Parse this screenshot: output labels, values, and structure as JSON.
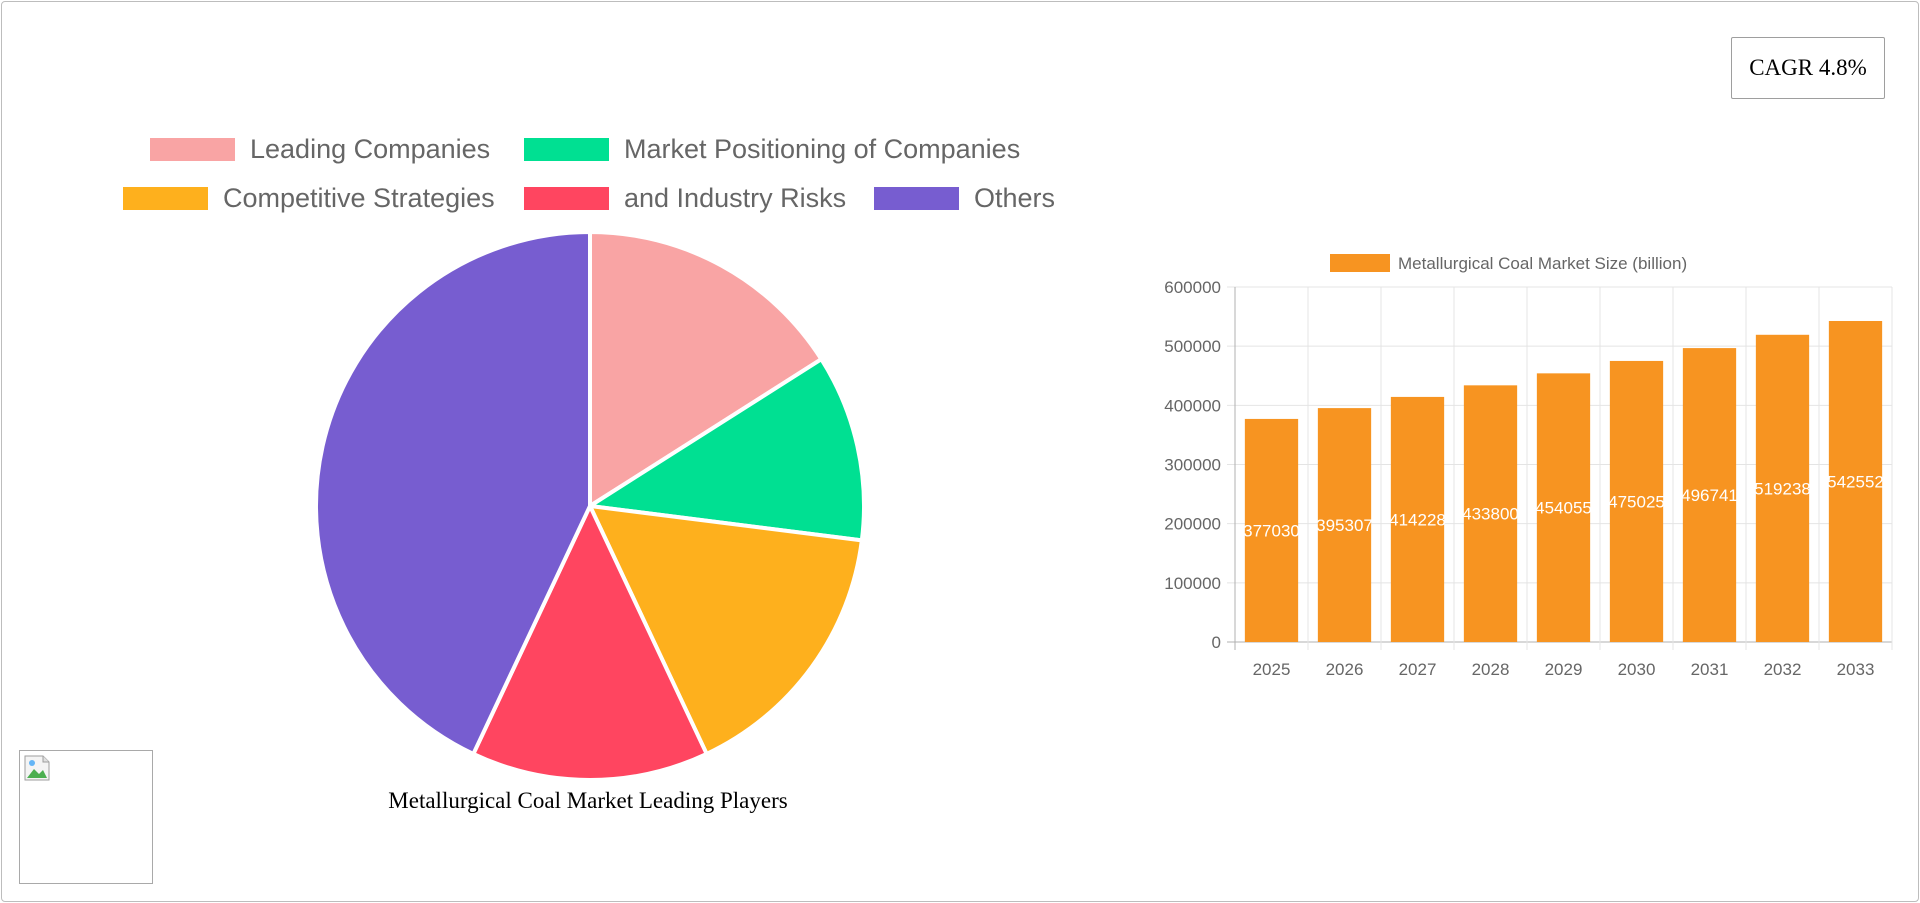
{
  "cagr_badge": "CAGR 4.8%",
  "pie_caption": "Metallurgical Coal Market Leading Players",
  "pie_legend": [
    {
      "label": "Leading Companies",
      "color": "#f9a4a4"
    },
    {
      "label": "Market Positioning of Companies",
      "color": "#00e092"
    },
    {
      "label": "Competitive Strategies",
      "color": "#feb01d"
    },
    {
      "label": "and Industry Risks",
      "color": "#ff4560"
    },
    {
      "label": "Others",
      "color": "#775dd0"
    }
  ],
  "chart_data": [
    {
      "type": "pie",
      "title": "",
      "categories": [
        "Leading Companies",
        "Market Positioning of Companies",
        "Competitive Strategies",
        "and Industry Risks",
        "Others"
      ],
      "values": [
        16,
        11,
        16,
        14,
        43
      ],
      "colors": [
        "#f9a4a4",
        "#00e092",
        "#feb01d",
        "#ff4560",
        "#775dd0"
      ],
      "legend_position": "top"
    },
    {
      "type": "bar",
      "title": "",
      "series": [
        {
          "name": "Metallurgical Coal Market Size (billion)",
          "color": "#f79421",
          "values": [
            377030,
            395307,
            414228,
            433800,
            454055,
            475025,
            496741,
            519238,
            542552
          ]
        }
      ],
      "categories": [
        "2025",
        "2026",
        "2027",
        "2028",
        "2029",
        "2030",
        "2031",
        "2032",
        "2033"
      ],
      "data_labels": [
        "377030",
        "395307",
        "414228",
        "433800",
        "454055",
        "475025",
        "496741",
        "519238",
        "542552"
      ],
      "ylim": [
        0,
        600000
      ],
      "yticks": [
        "0",
        "100000",
        "200000",
        "300000",
        "400000",
        "500000",
        "600000"
      ],
      "grid": true,
      "legend_position": "top"
    }
  ]
}
